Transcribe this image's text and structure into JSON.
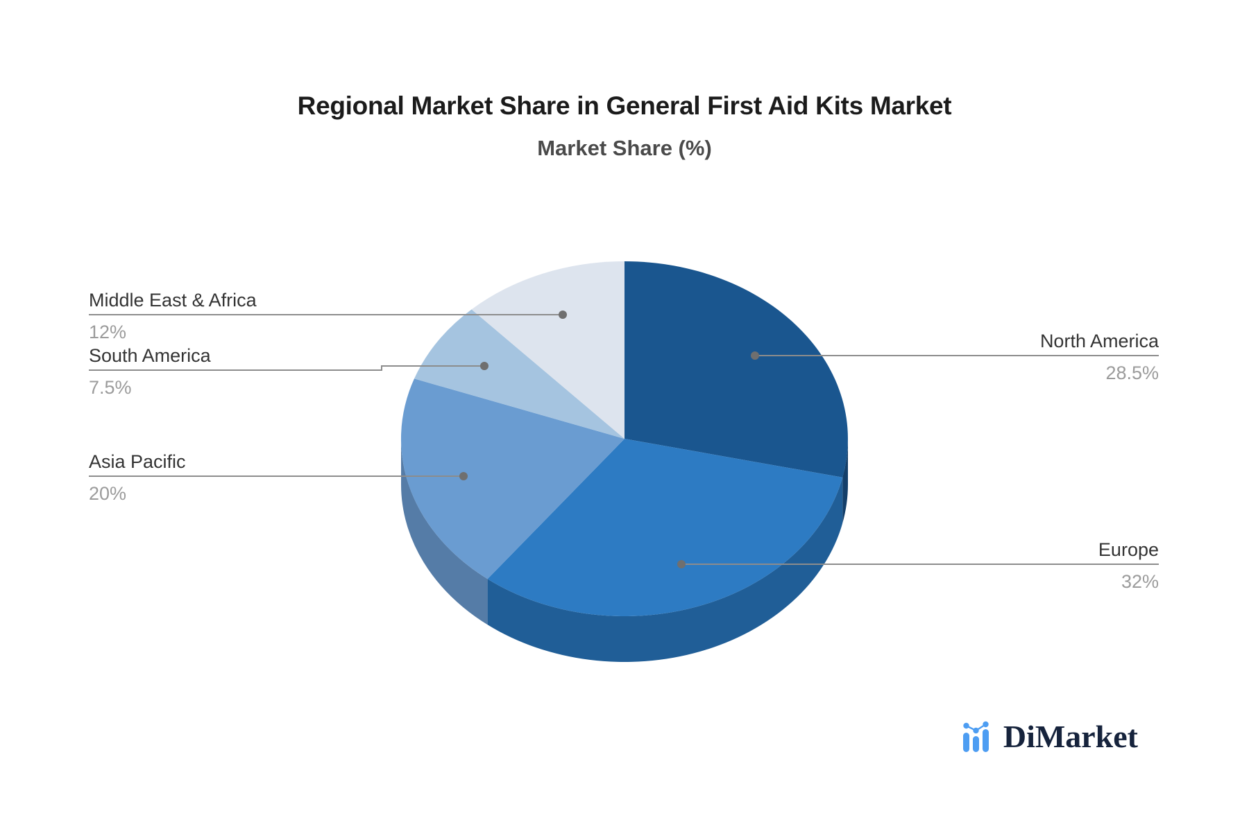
{
  "chart_data": {
    "type": "pie",
    "projection": "3d",
    "title": "Regional Market Share in General First Aid Kits Market",
    "subtitle": "Market Share (%)",
    "unit": "%",
    "direction": "clockwise",
    "start_angle": "12-oclock",
    "legend_position": "callout-labels",
    "slices": [
      {
        "label": "North America",
        "value": 28.5,
        "display": "28.5%",
        "color": "#1a568f",
        "side_color": "#143f6a",
        "label_side": "right"
      },
      {
        "label": "Europe",
        "value": 32,
        "display": "32%",
        "color": "#2d7bc3",
        "side_color": "#205e97",
        "label_side": "right"
      },
      {
        "label": "Asia Pacific",
        "value": 20,
        "display": "20%",
        "color": "#6a9cd1",
        "side_color": "#557ca7",
        "label_side": "left"
      },
      {
        "label": "South America",
        "value": 7.5,
        "display": "7.5%",
        "color": "#a5c4e0",
        "side_color": "#7e9cbd",
        "label_side": "left"
      },
      {
        "label": "Middle East & Africa",
        "value": 12,
        "display": "12%",
        "color": "#dde4ee",
        "side_color": "#b6c3d5",
        "label_side": "left"
      }
    ],
    "callout_line_color": "#8c8c8c",
    "callout_dot_color": "#6f6f6f",
    "label_text_color": "#333333",
    "value_text_color": "#9b9b9b"
  },
  "logo": {
    "text": "DiMarket",
    "accent_color": "#4d9df2",
    "text_color": "#16233c",
    "icon": "bar-line-chart-icon"
  }
}
